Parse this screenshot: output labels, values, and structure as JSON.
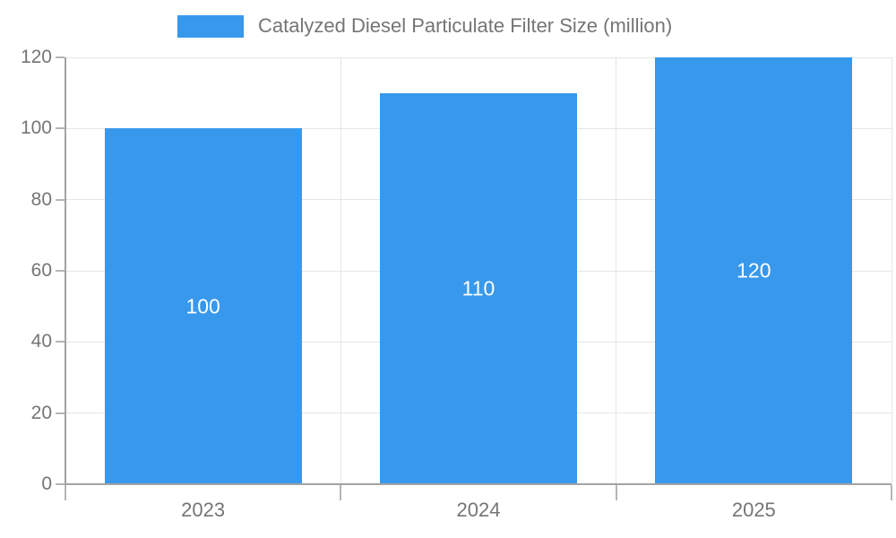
{
  "legend": {
    "label": "Catalyzed Diesel Particulate Filter Size (million)"
  },
  "chart_data": {
    "type": "bar",
    "title": "Catalyzed Diesel Particulate Filter Size (million)",
    "categories": [
      "2023",
      "2024",
      "2025"
    ],
    "values": [
      100,
      110,
      120
    ],
    "data_labels": [
      "100",
      "110",
      "120"
    ],
    "xlabel": "",
    "ylabel": "",
    "ylim": [
      0,
      120
    ],
    "yticks": [
      0,
      20,
      40,
      60,
      80,
      100,
      120
    ],
    "grid": true,
    "legend_position": "top"
  },
  "colors": {
    "bar": "#3898ec",
    "grid": "#e6e6e6",
    "axis": "#a3a3a3",
    "tick": "#b5b5b5",
    "tick_text": "#757575",
    "data_label": "#ffffff"
  }
}
